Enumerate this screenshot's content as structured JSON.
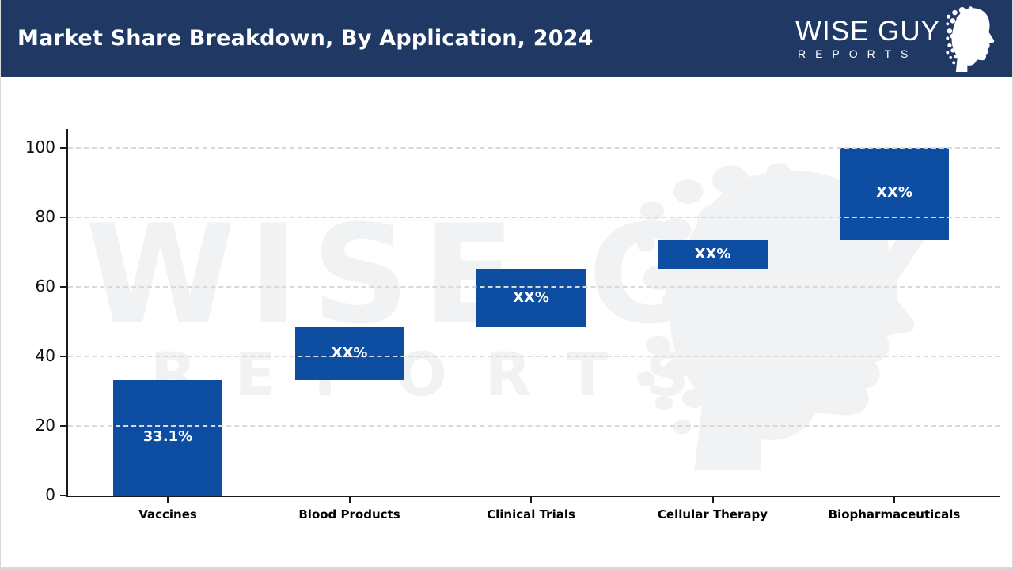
{
  "colors": {
    "header_bg": "#1f3864",
    "bar_blue": "#0d4ea3",
    "watermark_gray": "#f1f2f4",
    "axis_color": "#1a1a1a",
    "grid_color": "#d9d9d9"
  },
  "header": {
    "title": "Market Share Breakdown, By Application, 2024",
    "logo": {
      "wordmark": "WISE GUY",
      "subtext": "REPORTS"
    }
  },
  "watermark": {
    "wordmark": "WISE GUY",
    "subtext": "REPORTS"
  },
  "chart_data": {
    "type": "bar",
    "subtype": "waterfall",
    "title": "Market Share Breakdown, By Application, 2024",
    "categories": [
      "Vaccines",
      "Blood Products",
      "Clinical Trials",
      "Cellular Therapy",
      "Biopharmaceuticals"
    ],
    "segments": [
      {
        "category": "Vaccines",
        "start": 0,
        "end": 33.1,
        "label": "33.1%"
      },
      {
        "category": "Blood Products",
        "start": 33.1,
        "end": 48.4,
        "label": "XX%"
      },
      {
        "category": "Clinical Trials",
        "start": 48.4,
        "end": 64.9,
        "label": "XX%"
      },
      {
        "category": "Cellular Therapy",
        "start": 64.9,
        "end": 73.5,
        "label": "XX%"
      },
      {
        "category": "Biopharmaceuticals",
        "start": 73.5,
        "end": 100.0,
        "label": "XX%"
      }
    ],
    "xlabel": "",
    "ylabel": "",
    "y_ticks": [
      0,
      20,
      40,
      60,
      80,
      100
    ],
    "ylim": [
      0,
      105
    ],
    "grid": "horizontal-dashed",
    "legend": "none",
    "bar_color": "#0d4ea3",
    "bar_label_color": "#ffffff"
  }
}
